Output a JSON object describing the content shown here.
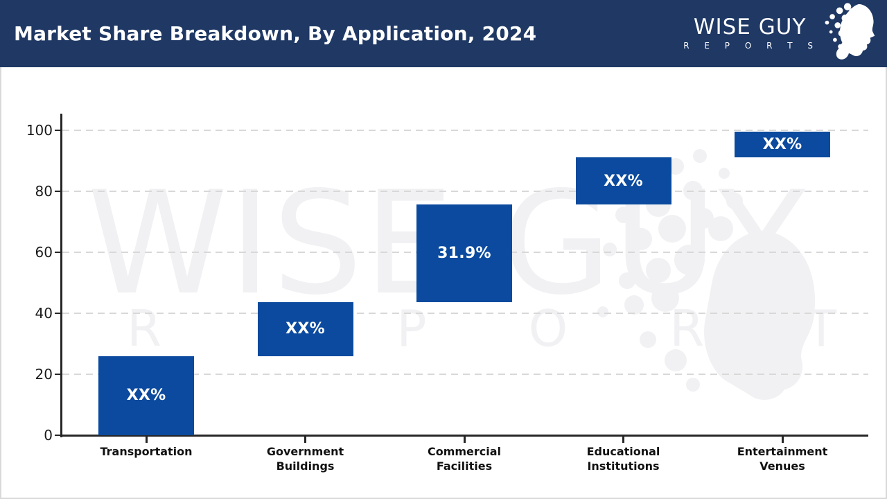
{
  "header": {
    "title": "Market Share Breakdown, By Application, 2024",
    "bg_color": "#1f3864",
    "logo": {
      "name": "WISE GUY",
      "sub": "R E P O R T S",
      "face_icon": "dotted-head-profile"
    }
  },
  "watermark": {
    "line1": "WISE GUY",
    "line2": "R E P O R T S",
    "color": "#f1f1f4"
  },
  "chart_data": {
    "type": "bar",
    "variant": "floating-waterfall",
    "title": "Market Share Breakdown, By Application, 2024",
    "categories": [
      "Transportation",
      "Government Buildings",
      "Commercial Facilities",
      "Educational Institutions",
      "Entertainment Venues"
    ],
    "series": [
      {
        "name": "Market share (%)",
        "segments": [
          {
            "category": "Transportation",
            "start": 0,
            "end": 26.0,
            "label": "XX%"
          },
          {
            "category": "Government Buildings",
            "start": 26.0,
            "end": 43.7,
            "label": "XX%"
          },
          {
            "category": "Commercial Facilities",
            "start": 43.7,
            "end": 75.6,
            "label": "31.9%"
          },
          {
            "category": "Educational Institutions",
            "start": 75.6,
            "end": 91.2,
            "label": "XX%"
          },
          {
            "category": "Entertainment Venues",
            "start": 91.2,
            "end": 99.6,
            "label": "XX%"
          }
        ]
      }
    ],
    "yticks": [
      0,
      20,
      40,
      60,
      80,
      100
    ],
    "ylim": [
      0,
      105
    ],
    "xlabel": "",
    "ylabel": "",
    "grid": "horizontal-dashed",
    "legend": "none",
    "bar_color": "#0b4a9e",
    "bar_label_color": "#ffffff",
    "axis_color": "#262626",
    "gridline_color": "#d8d8d8"
  }
}
